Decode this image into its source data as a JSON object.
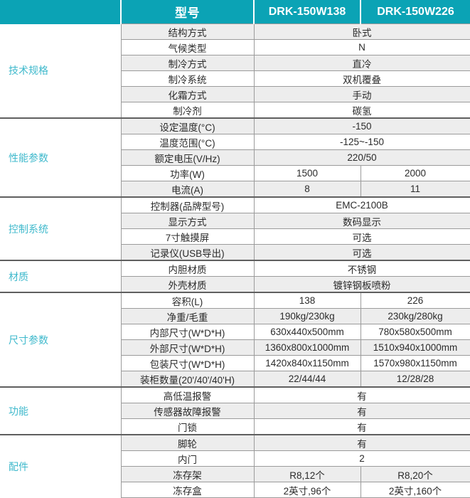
{
  "colors": {
    "header_bg": "#0ba3b5",
    "section_label": "#3fb9cc",
    "stripe": "#ededed"
  },
  "header": {
    "model_label": "型号",
    "models": [
      "DRK-150W138",
      "DRK-150W226"
    ]
  },
  "sections": [
    {
      "name": "技术规格",
      "rows": [
        {
          "label": "结构方式",
          "value": "卧式"
        },
        {
          "label": "气候类型",
          "value": "N"
        },
        {
          "label": "制冷方式",
          "value": "直冷"
        },
        {
          "label": "制冷系统",
          "value": "双机覆叠"
        },
        {
          "label": "化霜方式",
          "value": "手动"
        },
        {
          "label": "制冷剂",
          "value": "碳氢"
        }
      ]
    },
    {
      "name": "性能参数",
      "rows": [
        {
          "label": "设定温度(°C)",
          "value": "-150"
        },
        {
          "label": "温度范围(°C)",
          "value": "-125~-150"
        },
        {
          "label": "额定电压(V/Hz)",
          "value": "220/50"
        },
        {
          "label": "功率(W)",
          "values": [
            "1500",
            "2000"
          ]
        },
        {
          "label": "电流(A)",
          "values": [
            "8",
            "11"
          ]
        }
      ]
    },
    {
      "name": "控制系统",
      "rows": [
        {
          "label": "控制器(品牌型号)",
          "value": "EMC-2100B"
        },
        {
          "label": "显示方式",
          "value": "数码显示"
        },
        {
          "label": "7寸触摸屏",
          "value": "可选"
        },
        {
          "label": "记录仪(USB导出)",
          "value": "可选"
        }
      ]
    },
    {
      "name": "材质",
      "rows": [
        {
          "label": "内胆材质",
          "value": "不锈钢"
        },
        {
          "label": "外壳材质",
          "value": "镀锌钢板喷粉"
        }
      ]
    },
    {
      "name": "尺寸参数",
      "rows": [
        {
          "label": "容积(L)",
          "values": [
            "138",
            "226"
          ]
        },
        {
          "label": "净重/毛重",
          "values": [
            "190kg/230kg",
            "230kg/280kg"
          ]
        },
        {
          "label": "内部尺寸(W*D*H)",
          "values": [
            "630x440x500mm",
            "780x580x500mm"
          ]
        },
        {
          "label": "外部尺寸(W*D*H)",
          "values": [
            "1360x800x1000mm",
            "1510x940x1000mm"
          ]
        },
        {
          "label": "包装尺寸(W*D*H)",
          "values": [
            "1420x840x1150mm",
            "1570x980x1150mm"
          ]
        },
        {
          "label": "装柜数量(20'/40'/40'H)",
          "values": [
            "22/44/44",
            "12/28/28"
          ]
        }
      ]
    },
    {
      "name": "功能",
      "rows": [
        {
          "label": "高低温报警",
          "value": "有"
        },
        {
          "label": "传感器故障报警",
          "value": "有"
        },
        {
          "label": "门锁",
          "value": "有"
        }
      ]
    },
    {
      "name": "配件",
      "rows": [
        {
          "label": "脚轮",
          "value": "有"
        },
        {
          "label": "内门",
          "value": "2"
        },
        {
          "label": "冻存架",
          "values": [
            "R8,12个",
            "R8,20个"
          ]
        },
        {
          "label": "冻存盒",
          "values": [
            "2英寸,96个",
            "2英寸,160个"
          ]
        }
      ]
    }
  ]
}
